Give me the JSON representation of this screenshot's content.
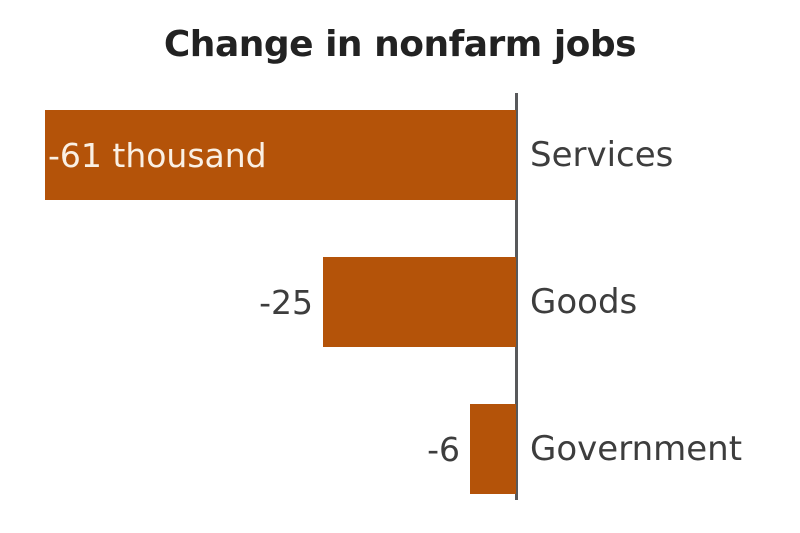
{
  "chart_data": {
    "type": "bar",
    "orientation": "horizontal",
    "title": "Change in nonfarm jobs",
    "categories": [
      "Services",
      "Goods",
      "Government"
    ],
    "values": [
      -61,
      -25,
      -6
    ],
    "unit": "thousand",
    "bars": [
      {
        "category": "Services",
        "value": -61,
        "label": "-61 thousand",
        "label_inside": true
      },
      {
        "category": "Goods",
        "value": -25,
        "label": "-25",
        "label_inside": false
      },
      {
        "category": "Government",
        "value": -6,
        "label": "-6",
        "label_inside": false
      }
    ],
    "xlim": [
      -65,
      0
    ],
    "baseline": "zero-axis-on-right",
    "grid": false,
    "legend": false,
    "colors": {
      "bar": "#b45309",
      "axis_line": "#58595b",
      "title_text": "#222222",
      "category_text": "#3d3d3d",
      "value_text_outside": "#3d3d3d",
      "value_text_inside": "#faf0e4"
    }
  }
}
